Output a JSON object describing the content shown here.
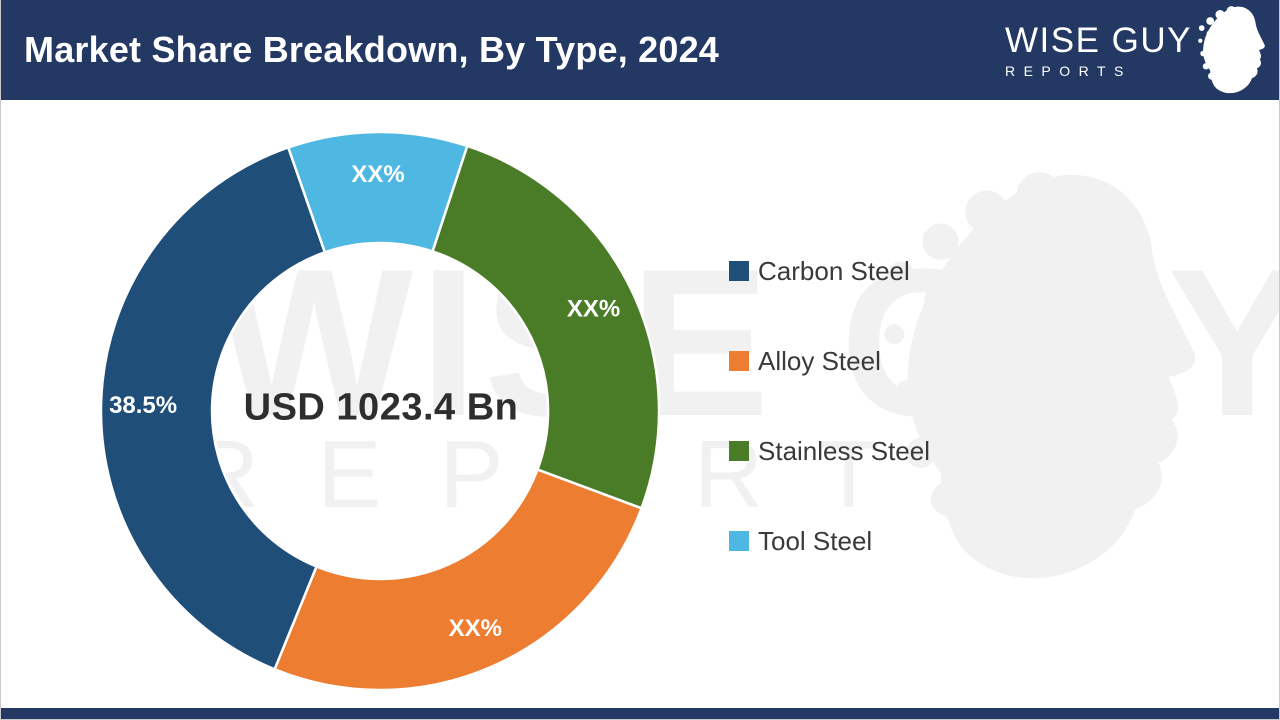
{
  "header": {
    "title": "Market Share Breakdown, By Type, 2024"
  },
  "logo": {
    "line1": "WISE GUY",
    "line2": "REPORTS"
  },
  "watermark": {
    "line1": "WISE GUY",
    "line2": "REPORTS"
  },
  "chart_data": {
    "type": "pie",
    "subtype": "donut",
    "title": "Market Share Breakdown, By Type, 2024",
    "center_label": "USD 1023.4 Bn",
    "start_angle_deg": -19.2,
    "slices": [
      {
        "label": "Tool Steel",
        "display": "XX%",
        "value": 10.4,
        "color": "#4FB8E2"
      },
      {
        "label": "Stainless Steel",
        "display": "XX%",
        "value": 25.6,
        "color": "#4A7C28"
      },
      {
        "label": "Alloy Steel",
        "display": "XX%",
        "value": 25.5,
        "color": "#ED7D31"
      },
      {
        "label": "Carbon Steel",
        "display": "38.5%",
        "value": 38.5,
        "color": "#1F4E79"
      }
    ],
    "legend": [
      {
        "label": "Carbon Steel",
        "color": "#1F4E79"
      },
      {
        "label": "Alloy Steel",
        "color": "#ED7D31"
      },
      {
        "label": "Stainless Steel",
        "color": "#4A7C28"
      },
      {
        "label": "Tool Steel",
        "color": "#4FB8E2"
      }
    ],
    "colors": {
      "header_bar": "#233863",
      "footer_bar": "#233863",
      "center_text": "#2e2e2e",
      "legend_text": "#3a3a3a",
      "slice_label_text": "#ffffff",
      "watermark": "#f1f1f1"
    }
  }
}
